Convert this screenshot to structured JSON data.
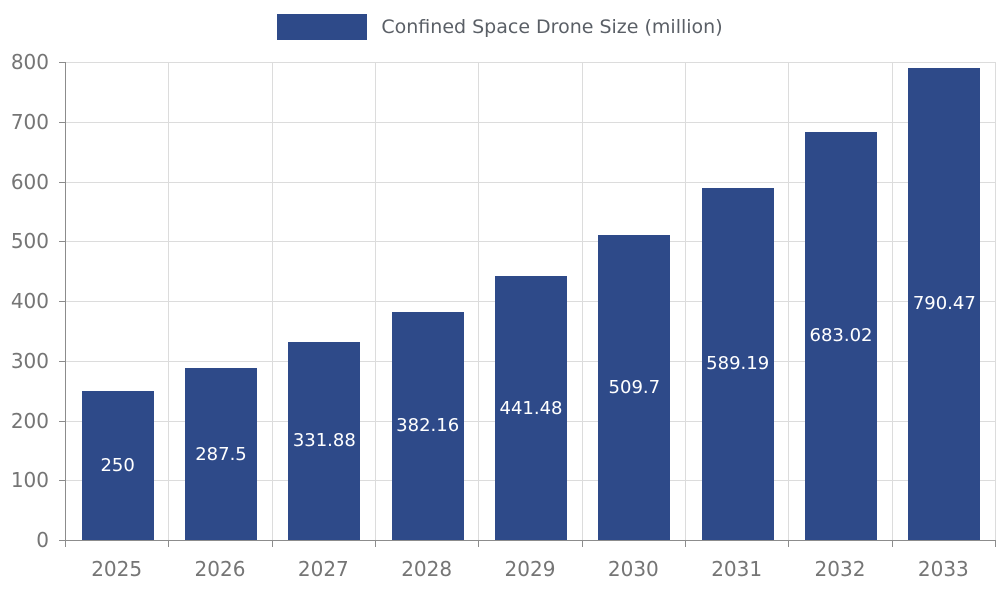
{
  "legend": {
    "items": [
      {
        "label": "Confined Space Drone Size (million)",
        "color": "#2e4a89"
      }
    ]
  },
  "chart_data": {
    "type": "bar",
    "title": "Confined Space Drone Size (million)",
    "categories": [
      "2025",
      "2026",
      "2027",
      "2028",
      "2029",
      "2030",
      "2031",
      "2032",
      "2033"
    ],
    "values": [
      250,
      287.5,
      331.88,
      382.16,
      441.48,
      509.7,
      589.19,
      683.02,
      790.47
    ],
    "value_labels": [
      "250",
      "287.5",
      "331.88",
      "382.16",
      "441.48",
      "509.7",
      "589.19",
      "683.02",
      "790.47"
    ],
    "xlabel": "",
    "ylabel": "",
    "ylim": [
      0,
      800
    ],
    "ytick_step": 100,
    "ytick_labels": [
      "0",
      "100",
      "200",
      "300",
      "400",
      "500",
      "600",
      "700",
      "800"
    ],
    "grid": true,
    "legend_position": "top",
    "bar_color": "#2e4a89",
    "value_label_color": "#ffffff",
    "axis_text_color": "#757575",
    "grid_color": "#dcdcdc",
    "axis_line_color": "#8c8c8c"
  }
}
